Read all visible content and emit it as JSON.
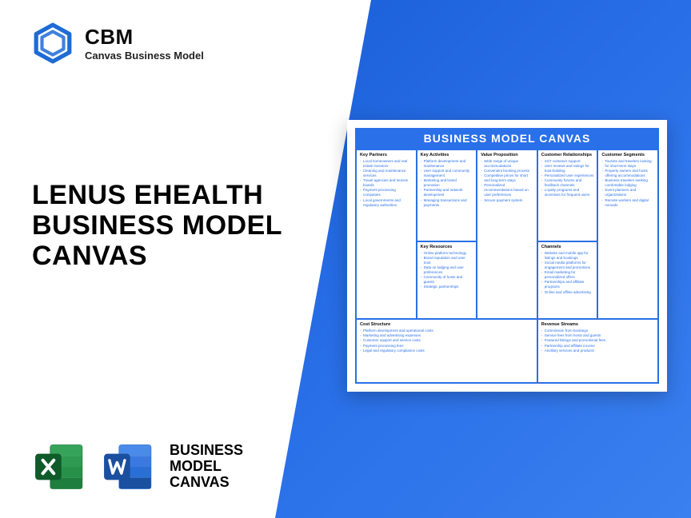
{
  "colors": {
    "brand_blue": "#2a70e8",
    "hex_blue": "#1e6bd6",
    "excel_green": "#1e7e3e",
    "excel_dark": "#0f5b2a",
    "word_blue": "#2a6fd6",
    "word_dark": "#1b4fa0",
    "text": "#000000"
  },
  "brand": {
    "abbrev": "CBM",
    "subtitle": "Canvas Business Model"
  },
  "title": {
    "l1": "LENUS EHEALTH",
    "l2": "BUSINESS MODEL",
    "l3": "CANVAS"
  },
  "footer": {
    "l1": "BUSINESS",
    "l2": "MODEL",
    "l3": "CANVAS"
  },
  "canvas": {
    "header": "BUSINESS MODEL CANVAS",
    "sections": {
      "kp": {
        "title": "Key Partners",
        "items": [
          "Local homeowners and real estate investors",
          "Cleaning and maintenance services",
          "Travel agencies and tourism boards",
          "Payment processing companies",
          "Local governments and regulatory authorities"
        ]
      },
      "ka": {
        "title": "Key Activities",
        "items": [
          "Platform development and maintenance",
          "User support and community management",
          "Marketing and brand promotion",
          "Partnership and network development",
          "Managing transactions and payments"
        ]
      },
      "vp": {
        "title": "Value Proposition",
        "items": [
          "Wide range of unique accommodations",
          "Convenient booking process",
          "Competitive prices for short and long-term stays",
          "Personalized recommendations based on user preferences",
          "Secure payment system"
        ]
      },
      "cr": {
        "title": "Customer Relationships",
        "items": [
          "24/7 customer support",
          "User reviews and ratings for trust-building",
          "Personalized user experiences",
          "Community forums and feedback channels",
          "Loyalty programs and incentives for frequent users"
        ]
      },
      "cs": {
        "title": "Customer Segments",
        "items": [
          "Tourists and travelers looking for short-term stays",
          "Property owners and hosts offering accommodations",
          "Business travelers seeking comfortable lodging",
          "Event planners and organizations",
          "Remote workers and digital nomads"
        ]
      },
      "kr": {
        "title": "Key Resources",
        "items": [
          "Online platform technology",
          "Brand reputation and user trust",
          "Data on lodging and user preferences",
          "Community of hosts and guests",
          "Strategic partnerships"
        ]
      },
      "ch": {
        "title": "Channels",
        "items": [
          "Website and mobile app for listings and bookings",
          "Social media platforms for engagement and promotions",
          "Email marketing for personalized offers",
          "Partnerships and affiliate programs",
          "Online and offline advertising"
        ]
      },
      "cost": {
        "title": "Cost Structure",
        "items": [
          "Platform development and operational costs",
          "Marketing and advertising expenses",
          "Customer support and service costs",
          "Payment processing fees",
          "Legal and regulatory compliance costs"
        ]
      },
      "rev": {
        "title": "Revenue Streams",
        "items": [
          "Commission from bookings",
          "Service fees from hosts and guests",
          "Featured listings and promotional fees",
          "Partnership and affiliate income",
          "Ancillary services and products"
        ]
      }
    }
  }
}
